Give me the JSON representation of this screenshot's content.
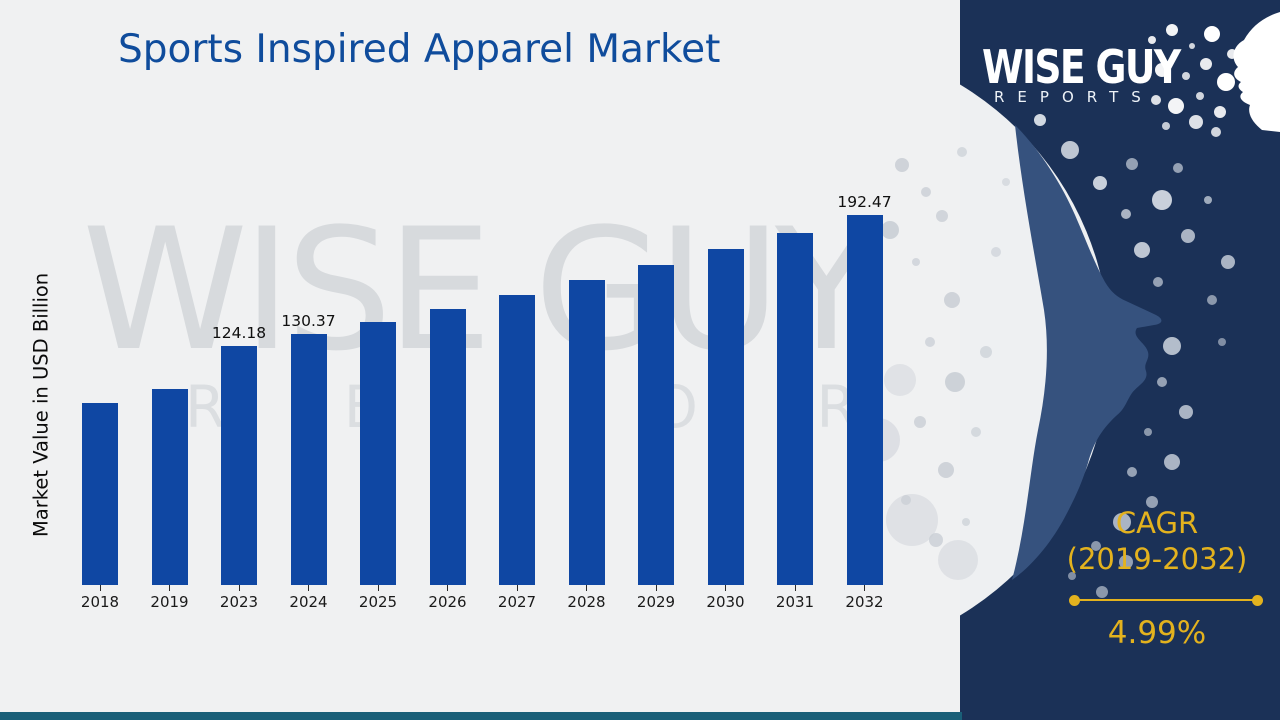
{
  "title": {
    "text": "Sports Inspired Apparel Market"
  },
  "watermark": {
    "line1": "WISE GUY",
    "line2": "R E P O R T S"
  },
  "logo": {
    "line1": "WISE GUY",
    "line2": "REPORTS",
    "face_icon": "face-profile-icon"
  },
  "cagr": {
    "label": "CAGR",
    "range": "(2019-2032)",
    "value": "4.99%"
  },
  "chart_data": {
    "type": "bar",
    "title": "Sports Inspired Apparel Market",
    "xlabel": "",
    "ylabel": "Market Value in USD Billion",
    "categories": [
      "2018",
      "2019",
      "2023",
      "2024",
      "2025",
      "2026",
      "2027",
      "2028",
      "2029",
      "2030",
      "2031",
      "2032"
    ],
    "values": [
      94.5,
      102.2,
      124.18,
      130.37,
      136.88,
      143.71,
      150.88,
      158.41,
      166.32,
      174.62,
      183.33,
      192.47
    ],
    "data_labels": [
      null,
      null,
      "124.18",
      "130.37",
      null,
      null,
      null,
      null,
      null,
      null,
      null,
      "192.47"
    ],
    "ylim": [
      0,
      200
    ],
    "grid": false,
    "legend": false
  },
  "colors": {
    "bar": "#0f47a3",
    "title_blue": "#0f4c9c",
    "navy_panel": "#1b3157",
    "gold": "#e3b21e",
    "teal_strip": "#1a5f78",
    "watermark_gray": "#d7dadd",
    "background": "#f0f1f2"
  }
}
